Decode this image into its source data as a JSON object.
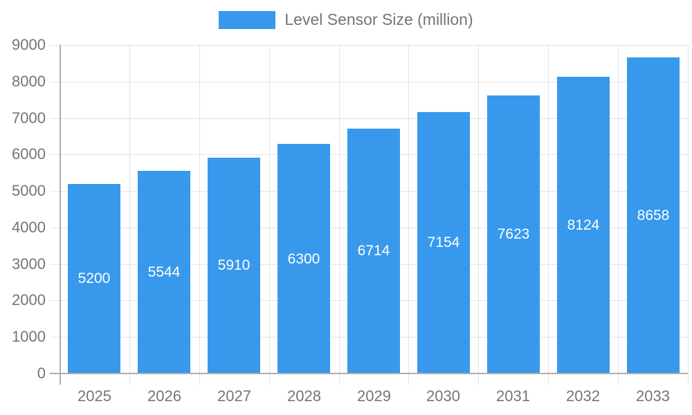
{
  "chart_data": {
    "type": "bar",
    "title": "Level Sensor Size (million)",
    "categories": [
      "2025",
      "2026",
      "2027",
      "2028",
      "2029",
      "2030",
      "2031",
      "2032",
      "2033"
    ],
    "values": [
      5200,
      5544,
      5910,
      6300,
      6714,
      7154,
      7623,
      8124,
      8658
    ],
    "xlabel": "",
    "ylabel": "",
    "ylim": [
      0,
      9000
    ],
    "ytick_step": 1000,
    "yticks": [
      0,
      1000,
      2000,
      3000,
      4000,
      5000,
      6000,
      7000,
      8000,
      9000
    ],
    "grid": true,
    "legend_position": "top-center",
    "value_labels": "inside-center",
    "colors": {
      "bar": "#3899EC",
      "value_label": "#FFFFFF",
      "axis_text": "#757575",
      "grid_line": "#E4E4E4",
      "axis_line": "#ADADAD",
      "background": "#FFFFFF"
    }
  },
  "legend": {
    "label": "Level Sensor Size (million)"
  }
}
